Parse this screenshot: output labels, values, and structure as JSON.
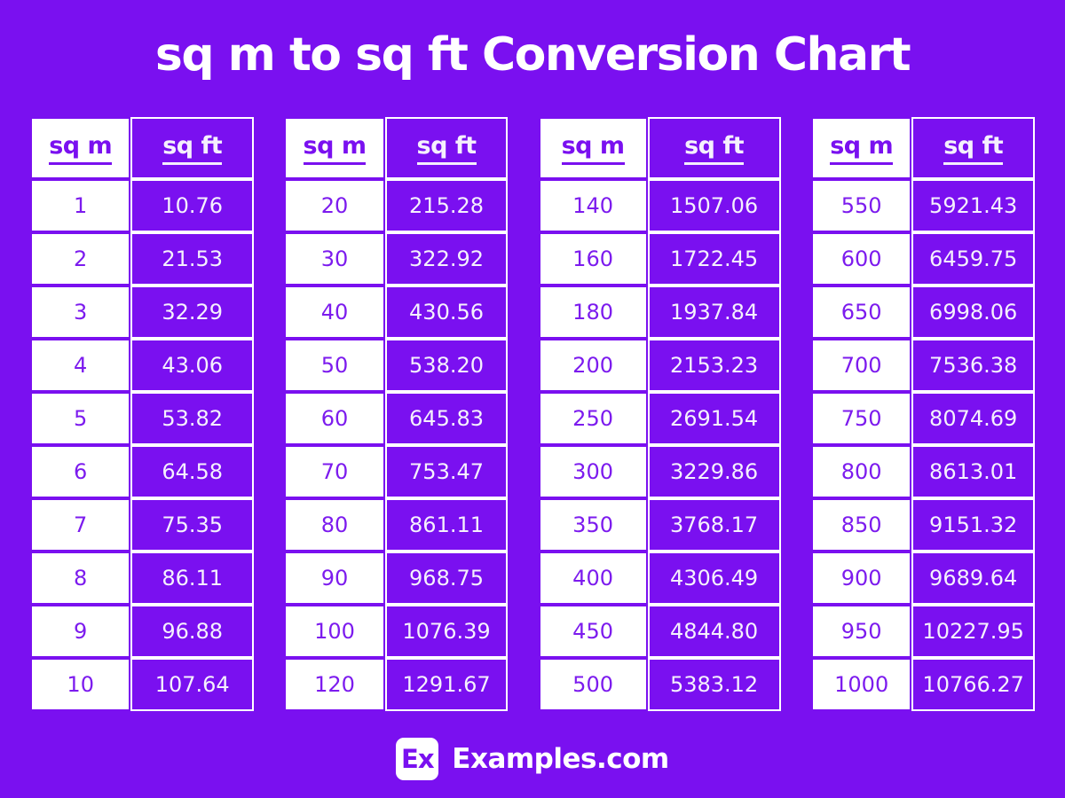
{
  "title": "sq m to sq ft Conversion Chart",
  "colors": {
    "background": "#7A10F0",
    "cell_purple": "#7A10F0",
    "white": "#FFFFFF",
    "sq_m_text_purple": "#7C1BEE"
  },
  "tables": [
    {
      "headers": [
        "sq m",
        "sq ft"
      ],
      "rows": [
        [
          "1",
          "10.76"
        ],
        [
          "2",
          "21.53"
        ],
        [
          "3",
          "32.29"
        ],
        [
          "4",
          "43.06"
        ],
        [
          "5",
          "53.82"
        ],
        [
          "6",
          "64.58"
        ],
        [
          "7",
          "75.35"
        ],
        [
          "8",
          "86.11"
        ],
        [
          "9",
          "96.88"
        ],
        [
          "10",
          "107.64"
        ]
      ]
    },
    {
      "headers": [
        "sq m",
        "sq ft"
      ],
      "rows": [
        [
          "20",
          "215.28"
        ],
        [
          "30",
          "322.92"
        ],
        [
          "40",
          "430.56"
        ],
        [
          "50",
          "538.20"
        ],
        [
          "60",
          "645.83"
        ],
        [
          "70",
          "753.47"
        ],
        [
          "80",
          "861.11"
        ],
        [
          "90",
          "968.75"
        ],
        [
          "100",
          "1076.39"
        ],
        [
          "120",
          "1291.67"
        ]
      ]
    },
    {
      "headers": [
        "sq m",
        "sq ft"
      ],
      "rows": [
        [
          "140",
          "1507.06"
        ],
        [
          "160",
          "1722.45"
        ],
        [
          "180",
          "1937.84"
        ],
        [
          "200",
          "2153.23"
        ],
        [
          "250",
          "2691.54"
        ],
        [
          "300",
          "3229.86"
        ],
        [
          "350",
          "3768.17"
        ],
        [
          "400",
          "4306.49"
        ],
        [
          "450",
          "4844.80"
        ],
        [
          "500",
          "5383.12"
        ]
      ]
    },
    {
      "headers": [
        "sq m",
        "sq ft"
      ],
      "rows": [
        [
          "550",
          "5921.43"
        ],
        [
          "600",
          "6459.75"
        ],
        [
          "650",
          "6998.06"
        ],
        [
          "700",
          "7536.38"
        ],
        [
          "750",
          "8074.69"
        ],
        [
          "800",
          "8613.01"
        ],
        [
          "850",
          "9151.32"
        ],
        [
          "900",
          "9689.64"
        ],
        [
          "950",
          "10227.95"
        ],
        [
          "1000",
          "10766.27"
        ]
      ]
    }
  ],
  "footer": {
    "logo_text": "Ex",
    "site_name": "Examples.com"
  },
  "chart_data": {
    "type": "table",
    "title": "sq m to sq ft Conversion Chart",
    "columns": [
      "sq m",
      "sq ft"
    ],
    "rows": [
      [
        1,
        10.76
      ],
      [
        2,
        21.53
      ],
      [
        3,
        32.29
      ],
      [
        4,
        43.06
      ],
      [
        5,
        53.82
      ],
      [
        6,
        64.58
      ],
      [
        7,
        75.35
      ],
      [
        8,
        86.11
      ],
      [
        9,
        96.88
      ],
      [
        10,
        107.64
      ],
      [
        20,
        215.28
      ],
      [
        30,
        322.92
      ],
      [
        40,
        430.56
      ],
      [
        50,
        538.2
      ],
      [
        60,
        645.83
      ],
      [
        70,
        753.47
      ],
      [
        80,
        861.11
      ],
      [
        90,
        968.75
      ],
      [
        100,
        1076.39
      ],
      [
        120,
        1291.67
      ],
      [
        140,
        1507.06
      ],
      [
        160,
        1722.45
      ],
      [
        180,
        1937.84
      ],
      [
        200,
        2153.23
      ],
      [
        250,
        2691.54
      ],
      [
        300,
        3229.86
      ],
      [
        350,
        3768.17
      ],
      [
        400,
        4306.49
      ],
      [
        450,
        4844.8
      ],
      [
        500,
        5383.12
      ],
      [
        550,
        5921.43
      ],
      [
        600,
        6459.75
      ],
      [
        650,
        6998.06
      ],
      [
        700,
        7536.38
      ],
      [
        750,
        8074.69
      ],
      [
        800,
        8613.01
      ],
      [
        850,
        9151.32
      ],
      [
        900,
        9689.64
      ],
      [
        950,
        10227.95
      ],
      [
        1000,
        10766.27
      ]
    ]
  }
}
